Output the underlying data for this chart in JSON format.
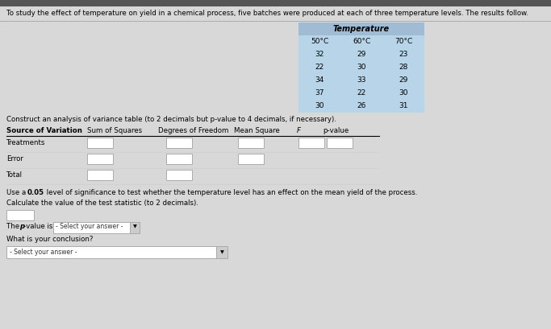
{
  "title_text": "To study the effect of temperature on yield in a chemical process, five batches were produced at each of three temperature levels. The results follow.",
  "table_header_main": "Temperature",
  "table_col_headers": [
    "50°C",
    "60°C",
    "70°C"
  ],
  "table_data": [
    [
      32,
      29,
      23
    ],
    [
      22,
      30,
      28
    ],
    [
      34,
      33,
      29
    ],
    [
      37,
      22,
      30
    ],
    [
      30,
      26,
      31
    ]
  ],
  "table_bg_color": "#b8d4e8",
  "table_header_bg": "#a0bcd4",
  "anova_label": "Construct an analysis of variance table (to 2 decimals but p-value to 4 decimals, if necessary).",
  "anova_headers": [
    "Source of Variation",
    "Sum of Squares",
    "Degrees of Freedom",
    "Mean Square",
    "F",
    "p-value"
  ],
  "anova_rows": [
    "Treatments",
    "Error",
    "Total"
  ],
  "significance_bold": "0.05",
  "significance_after": " level of significance to test whether the temperature level has an effect on the mean yield of the process.",
  "calc_text": "Calculate the value of the test statistic (to 2 decimals).",
  "pvalue_label": "The p‑value is",
  "pvalue_dropdown": "- Select your answer -",
  "conclusion_text": "What is your conclusion?",
  "conclusion_dropdown": "- Select your answer -",
  "page_bg": "#d8d8d8",
  "content_bg": "#d0cece",
  "white": "#ffffff",
  "box_border": "#aaaaaa"
}
